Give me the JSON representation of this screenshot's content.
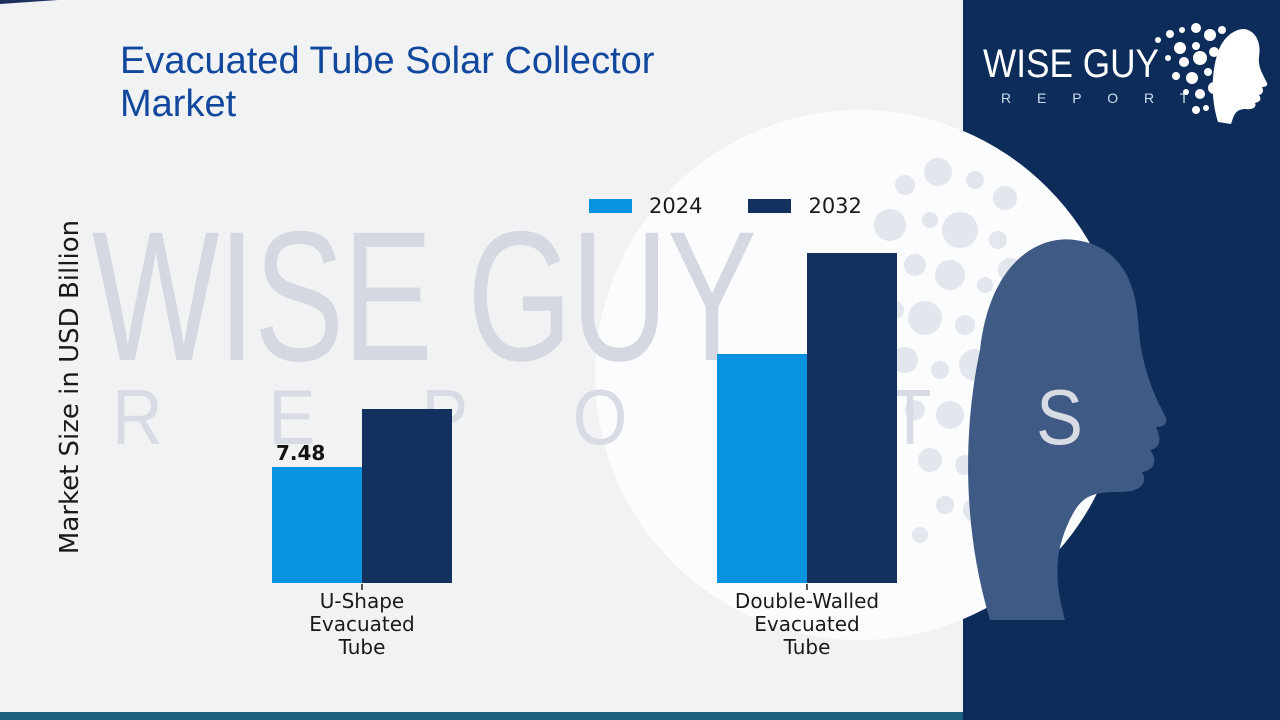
{
  "page": {
    "title": "Evacuated Tube Solar Collector Market"
  },
  "watermark": {
    "wordmark": "WISE GUY",
    "reports": "R E P O R T S"
  },
  "logo": {
    "wordmark": "WISE GUY",
    "reports": "R E P O R T S",
    "face_icon": "face-profile-dots-icon"
  },
  "colors": {
    "title_blue": "#11489e",
    "bar_2024": "#0793e0",
    "bar_2032": "#12315f",
    "panel_navy": "#0d2c5a",
    "bottom_strip_teal": "#1d5f7e",
    "background": "#f1f2f3"
  },
  "chart_data": {
    "type": "bar",
    "title": "Evacuated Tube Solar Collector Market",
    "ylabel": "Market Size in USD Billion",
    "xlabel": "",
    "categories": [
      "U-Shape Evacuated Tube",
      "Double-Walled Evacuated Tube"
    ],
    "category_display": [
      "U-Shape\nEvacuated\nTube",
      "Double-Walled\nEvacuated\nTube"
    ],
    "series": [
      {
        "name": "2024",
        "color": "#0793e0",
        "values": [
          7.48,
          14.8
        ]
      },
      {
        "name": "2032",
        "color": "#12315f",
        "values": [
          11.2,
          21.3
        ]
      }
    ],
    "data_labels": [
      "7.48"
    ],
    "legend_position": "top-center",
    "grid": false,
    "ylim": [
      0,
      22
    ],
    "y_axis_ticks_visible": false
  }
}
